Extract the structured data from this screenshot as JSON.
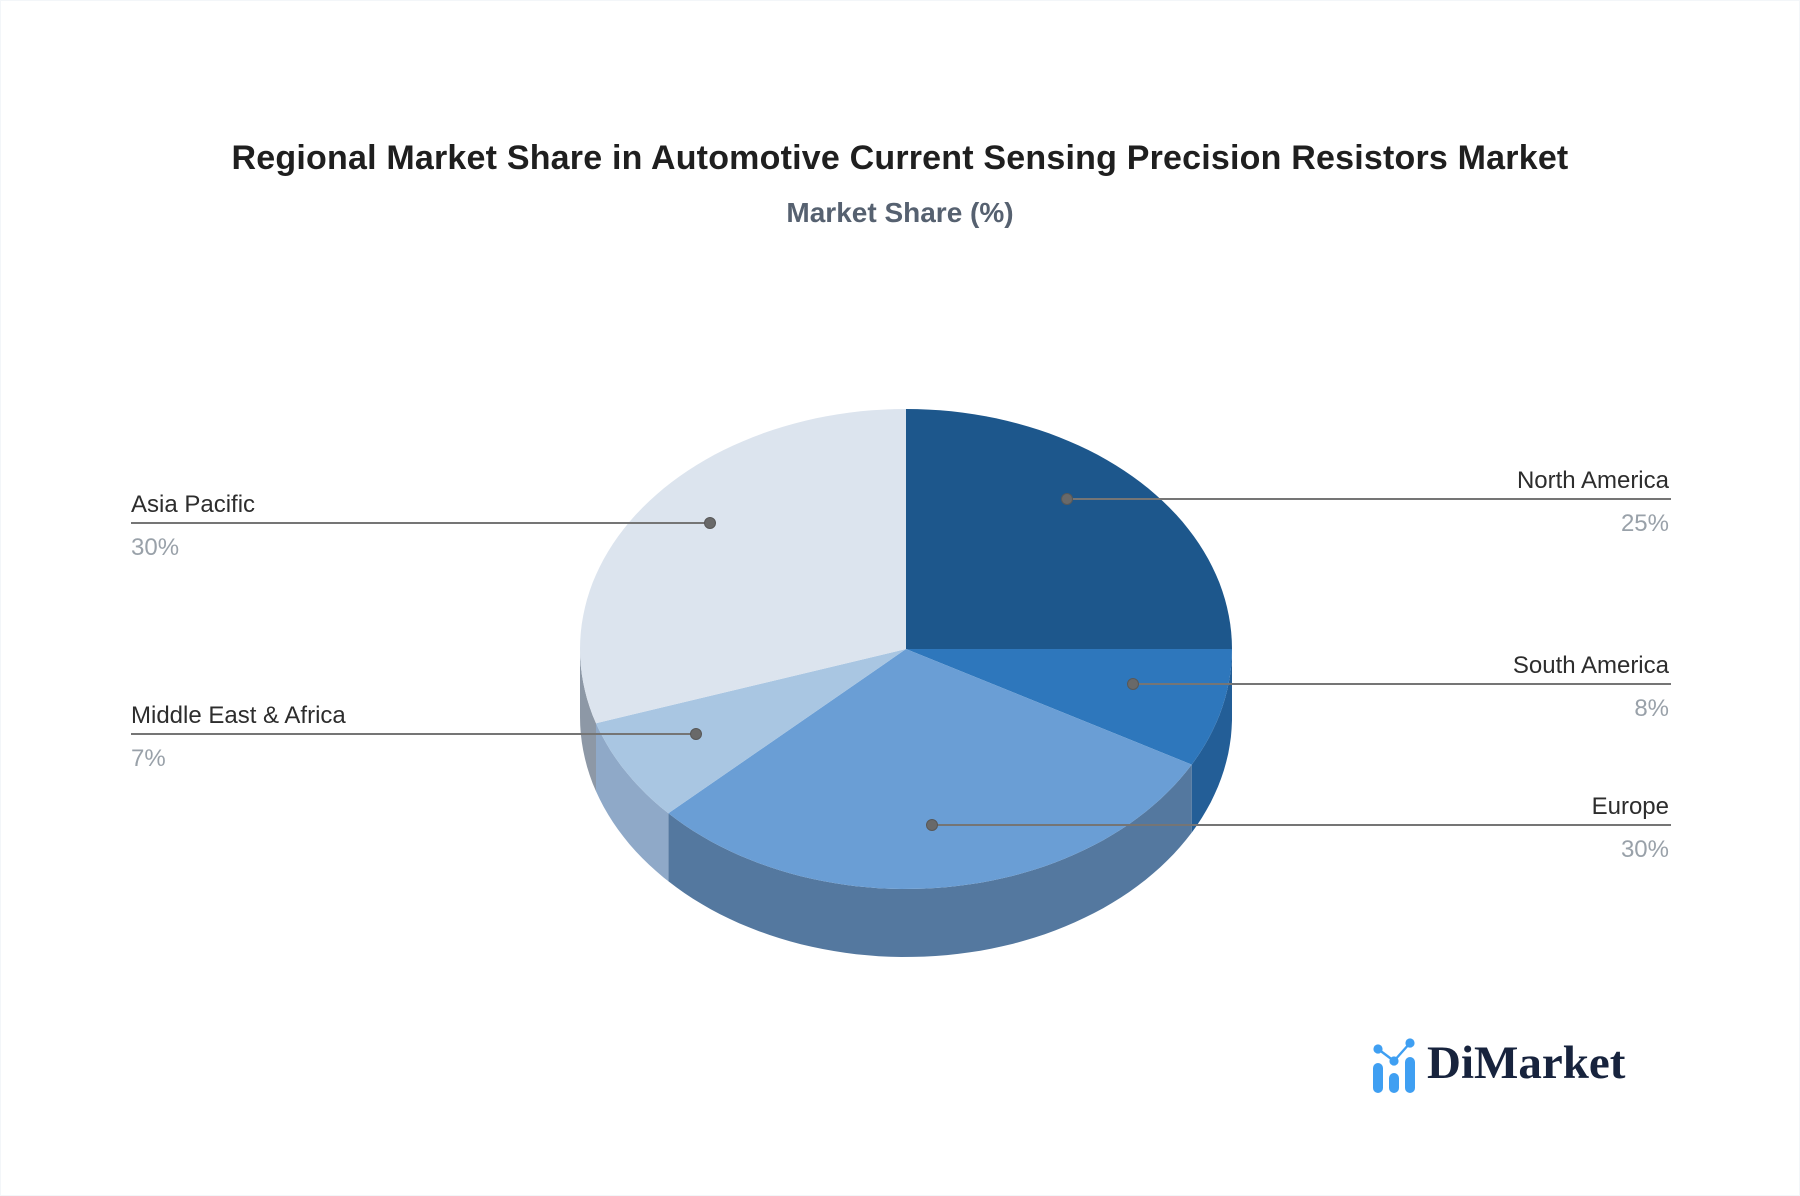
{
  "chart_data": {
    "type": "pie",
    "title": "Regional Market Share in Automotive Current Sensing Precision Resistors Market",
    "subtitle": "Market Share (%)",
    "unit": "%",
    "start_angle_deg": 90,
    "clockwise": true,
    "style": "3d-pie",
    "legend_position": "none",
    "labels_layout": "horizontal-leader-lines",
    "slices": [
      {
        "label": "North America",
        "value": 25,
        "display": "25%",
        "color": "#1d578c",
        "side_color": "#16456e",
        "label_side": "right"
      },
      {
        "label": "South America",
        "value": 8,
        "display": "8%",
        "color": "#2e77bc",
        "side_color": "#235e97",
        "label_side": "right"
      },
      {
        "label": "Europe",
        "value": 30,
        "display": "30%",
        "color": "#6a9ed5",
        "side_color": "#54789f",
        "label_side": "right"
      },
      {
        "label": "Middle East & Africa",
        "value": 7,
        "display": "7%",
        "color": "#a9c6e2",
        "side_color": "#8fa9c8",
        "label_side": "left"
      },
      {
        "label": "Asia Pacific",
        "value": 30,
        "display": "30%",
        "color": "#dce4ee",
        "side_color": "#8d98a6",
        "label_side": "left"
      }
    ],
    "styles": {
      "title_color": "#1f1f1f",
      "subtitle_color": "#566170",
      "label_color": "#2d2d2d",
      "value_color": "#99a1a9",
      "leader_line_color": "#757575",
      "leader_dot_color": "#696969",
      "background": "#ffffff"
    }
  },
  "branding": {
    "logo_text": "DiMarket",
    "logo_icon": "bar-chart-icon",
    "logo_text_color": "#17233d",
    "logo_icon_color": "#3f9ff2"
  }
}
